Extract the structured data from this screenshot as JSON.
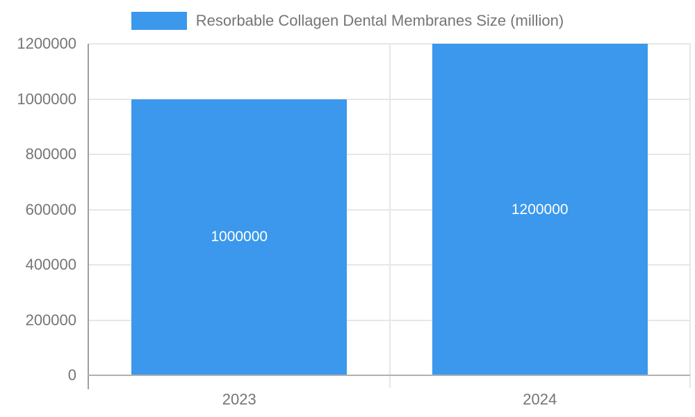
{
  "legend": {
    "label": "Resorbable Collagen Dental Membranes Size (million)",
    "swatch_color": "#3b98ec"
  },
  "chart_data": {
    "type": "bar",
    "title": "Resorbable Collagen Dental Membranes Size (million)",
    "categories": [
      "2023",
      "2024"
    ],
    "values": [
      1000000,
      1200000
    ],
    "bar_labels": [
      "1000000",
      "1200000"
    ],
    "y_ticks": [
      0,
      200000,
      400000,
      600000,
      800000,
      1000000,
      1200000
    ],
    "y_tick_labels": [
      "0",
      "200000",
      "400000",
      "600000",
      "800000",
      "1000000",
      "1200000"
    ],
    "ylim": [
      0,
      1200000
    ],
    "xlabel": "",
    "ylabel": "",
    "grid": true,
    "legend_position": "top",
    "colors": {
      "series": "#3b98ec",
      "bar_label": "#ffffff",
      "axis_text": "#757575",
      "grid": "#e6e6e6",
      "y_axis_line": "#9e9e9e",
      "baseline": "#b0b0b0"
    }
  }
}
